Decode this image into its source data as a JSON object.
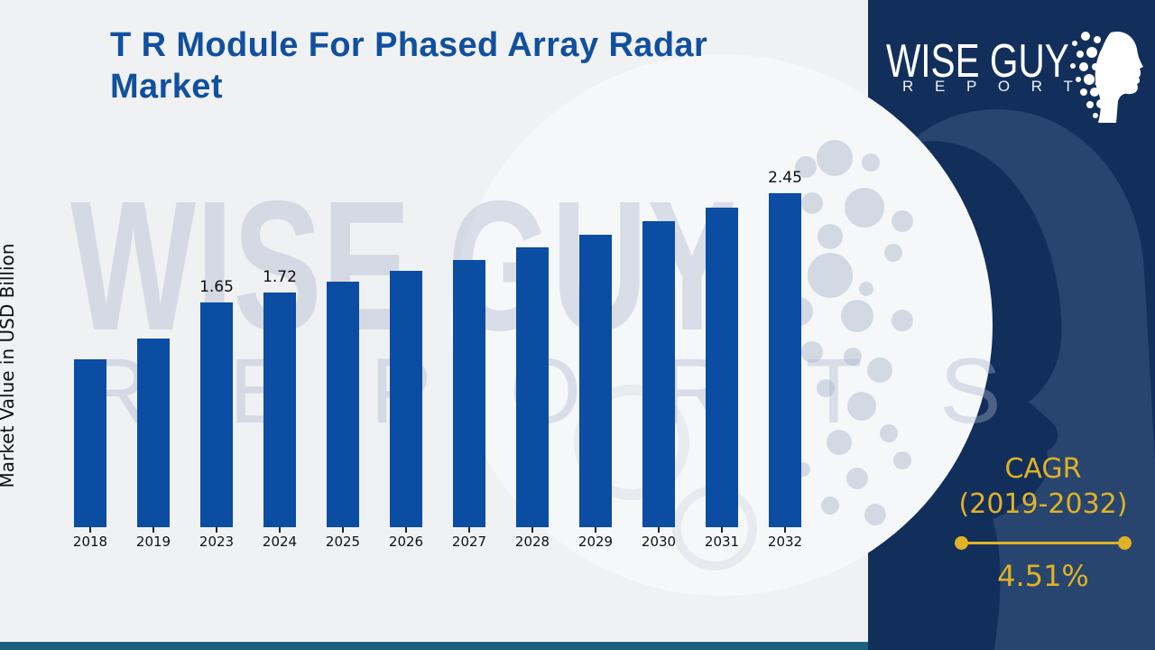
{
  "title": "T R Module For Phased Array Radar Market",
  "y_axis_label": "Market Value in USD Billion",
  "watermark": {
    "line1": "WISE GUY",
    "line2": "R E P O R T S"
  },
  "logo": {
    "line1": "WISE GUY",
    "line2": "R E P O R T S",
    "face_icon": "dotted-head-profile"
  },
  "cagr": {
    "heading": "CAGR",
    "range": "(2019-2032)",
    "value": "4.51%"
  },
  "colors": {
    "bg": "#f0f1f3",
    "panel-navy": "#122f5c",
    "panel-navy-light": "#27456f",
    "bar-blue": "#0a4da2",
    "title-blue": "#10509e",
    "gold": "#e0b225",
    "teal": "#1d5f7e",
    "wm": "rgba(168,180,202,0.38)",
    "circle-light": "#f6f7f9",
    "dots-gray": "#ccd3e0"
  },
  "chart_data": {
    "type": "bar",
    "categories": [
      "2018",
      "2019",
      "2023",
      "2024",
      "2025",
      "2026",
      "2027",
      "2028",
      "2029",
      "2030",
      "2031",
      "2032"
    ],
    "values": [
      1.23,
      1.38,
      1.65,
      1.72,
      1.8,
      1.88,
      1.96,
      2.05,
      2.14,
      2.24,
      2.34,
      2.45
    ],
    "data_labels": [
      "",
      "",
      "1.65",
      "1.72",
      "",
      "",
      "",
      "",
      "",
      "",
      "",
      "2.45"
    ],
    "title": "",
    "xlabel": "",
    "ylabel": "Market Value in USD Billion",
    "ylim": [
      0,
      2.75
    ],
    "grid": false,
    "legend": "none"
  }
}
